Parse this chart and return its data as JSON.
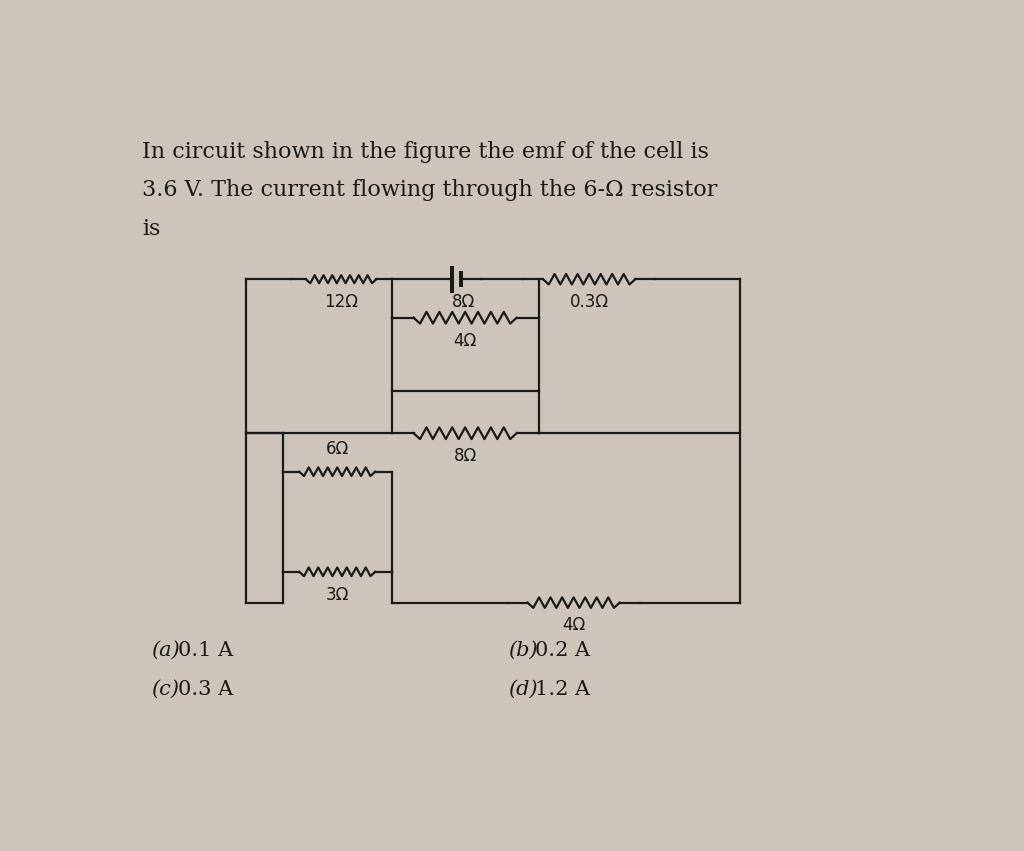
{
  "title_line1": "In circuit shown in the figure the emf of the cell is",
  "title_line2": "3.6 V. The current flowing through the 6-Ω resistor",
  "title_line3": "is",
  "bg_color": "#cdc5bc",
  "text_color": "#1a1a1a",
  "options": [
    [
      "(a)",
      "0.1 A",
      "(b)",
      "0.2 A"
    ],
    [
      "(c)",
      "0.3 A",
      "(d)",
      "1.2 A"
    ]
  ],
  "labels": {
    "12ohm": "12Ω",
    "8ohm_bat": "8Ω",
    "03ohm": "0.3Ω",
    "4ohm_inner": "4Ω",
    "8ohm_inner": "8Ω",
    "6ohm": "6Ω",
    "3ohm": "3Ω",
    "4ohm_bot": "4Ω"
  },
  "lw": 1.6
}
